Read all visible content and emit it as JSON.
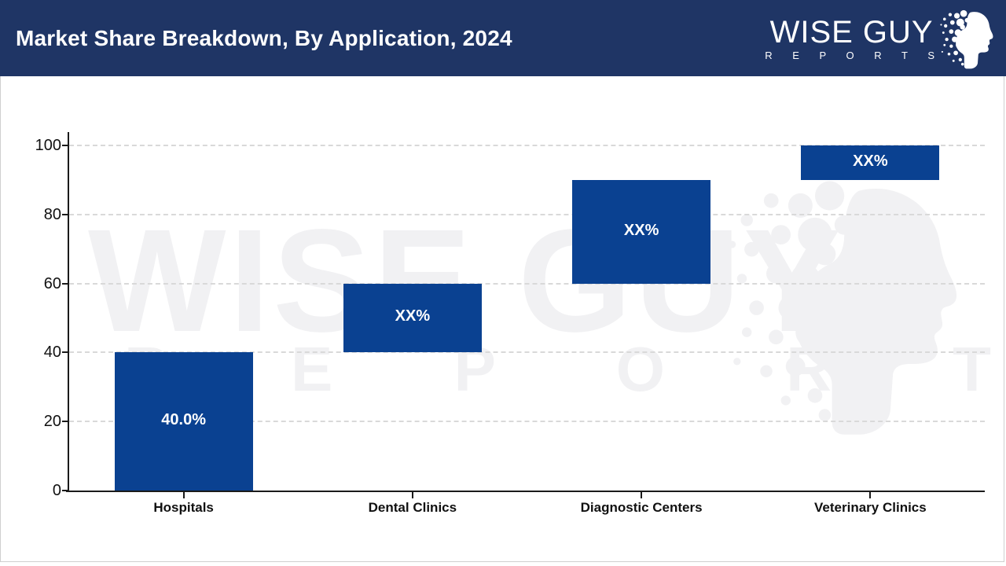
{
  "header": {
    "title": "Market Share Breakdown, By Application, 2024",
    "logo": {
      "line1": "WISE GUY",
      "line2": "R E P O R T S"
    }
  },
  "watermark": {
    "line1": "WISE GUY",
    "line2": "R E P O R T S"
  },
  "colors": {
    "header_bg": "#1f3565",
    "bar": "#0a4191",
    "grid": "#d9d9d9",
    "axis": "#1a1a1a",
    "bar_label": "#ffffff",
    "tick_label": "#111111",
    "watermark": "#f1f1f3",
    "frame_border": "#cfcfcf"
  },
  "chart_data": {
    "type": "bar",
    "subtype": "floating-waterfall",
    "title": "Market Share Breakdown, By Application, 2024",
    "categories": [
      "Hospitals",
      "Dental Clinics",
      "Diagnostic Centers",
      "Veterinary Clinics"
    ],
    "series": [
      {
        "name": "Market Share (%)",
        "segments": [
          {
            "category": "Hospitals",
            "start": 0,
            "end": 40,
            "label": "40.0%"
          },
          {
            "category": "Dental Clinics",
            "start": 40,
            "end": 60,
            "label": "XX%"
          },
          {
            "category": "Diagnostic Centers",
            "start": 60,
            "end": 90,
            "label": "XX%"
          },
          {
            "category": "Veterinary Clinics",
            "start": 90,
            "end": 100,
            "label": "XX%"
          }
        ]
      }
    ],
    "xlabel": "",
    "ylabel": "",
    "ylim": [
      0,
      100
    ],
    "yticks": [
      0,
      20,
      40,
      60,
      80,
      100
    ],
    "grid": "horizontal-dashed",
    "legend": "none"
  }
}
